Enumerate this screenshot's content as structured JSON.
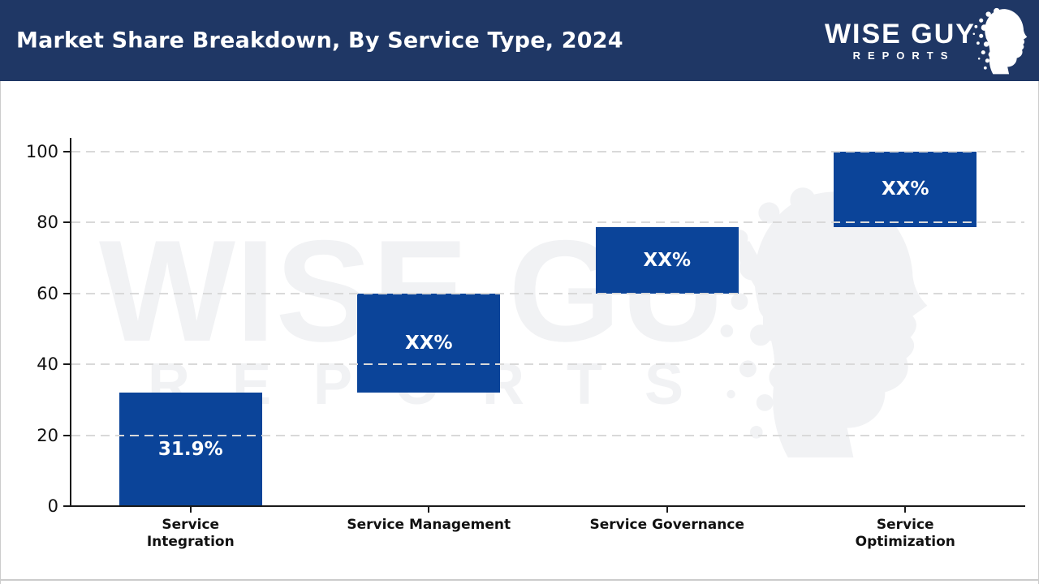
{
  "header": {
    "title": "Market Share Breakdown, By Service Type, 2024",
    "logo": {
      "line1": "WISE GUY",
      "line2": "REPORTS",
      "icon": "dotted-face-profile-icon"
    }
  },
  "watermark": {
    "line1": "WISE GUY",
    "line2": "REPORTS",
    "icon": "dotted-face-profile-icon"
  },
  "colors": {
    "header_bg": "#1f3765",
    "title": "#ffffff",
    "logo": "#ffffff",
    "bar": "#0b4499",
    "bar_label": "#ffffff",
    "grid": "#d9d9d9",
    "axis": "#1a1a1a",
    "tick_label": "#111111",
    "watermark": "#f1f2f4",
    "hairline": "#cccccc"
  },
  "chart_data": {
    "type": "bar",
    "subtype": "waterfall",
    "title": "Market Share Breakdown, By Service Type, 2024",
    "categories": [
      "Service Integration",
      "Service Management",
      "Service Governance",
      "Service Optimization"
    ],
    "category_lines": [
      [
        "Service",
        "Integration"
      ],
      [
        "Service Management"
      ],
      [
        "Service Governance"
      ],
      [
        "Service",
        "Optimization"
      ]
    ],
    "segments": [
      {
        "category": "Service Integration",
        "label": "31.9%",
        "start": 0,
        "end": 31.9
      },
      {
        "category": "Service Management",
        "label": "XX%",
        "start": 31.9,
        "end": 60
      },
      {
        "category": "Service Governance",
        "label": "XX%",
        "start": 60,
        "end": 78.6
      },
      {
        "category": "Service Optimization",
        "label": "XX%",
        "start": 78.6,
        "end": 100
      }
    ],
    "yticks": [
      0,
      20,
      40,
      60,
      80,
      100
    ],
    "ylim": [
      0,
      104
    ],
    "xlabel": "",
    "ylabel": "",
    "grid": "horizontal-dashed",
    "legend": "none"
  }
}
